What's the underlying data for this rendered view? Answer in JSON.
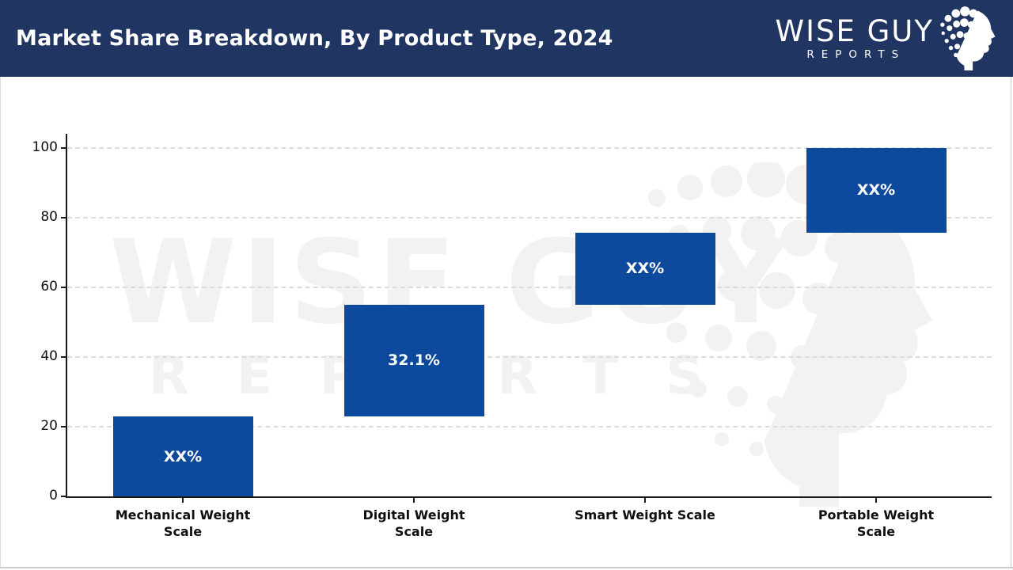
{
  "header": {
    "title": "Market Share Breakdown, By Product Type, 2024",
    "background_color": "#213563",
    "logo": {
      "line1": "WISE GUY",
      "line2": "REPORTS"
    }
  },
  "watermark": {
    "line1": "WISE GUY",
    "line2": "REPORTS"
  },
  "chart_data": {
    "type": "bar",
    "variant": "waterfall",
    "title": "Market Share Breakdown, By Product Type, 2024",
    "xlabel": "",
    "ylabel": "",
    "categories": [
      "Mechanical Weight Scale",
      "Digital Weight Scale",
      "Smart Weight Scale",
      "Portable Weight Scale"
    ],
    "category_label_lines": [
      [
        "Mechanical Weight",
        "Scale"
      ],
      [
        "Digital Weight",
        "Scale"
      ],
      [
        "Smart Weight Scale"
      ],
      [
        "Portable Weight",
        "Scale"
      ]
    ],
    "segments": [
      {
        "category": "Mechanical Weight Scale",
        "start": 0,
        "end": 22.9,
        "label": "XX%"
      },
      {
        "category": "Digital Weight Scale",
        "start": 22.9,
        "end": 55.0,
        "label": "32.1%"
      },
      {
        "category": "Smart Weight Scale",
        "start": 55.0,
        "end": 75.7,
        "label": "XX%"
      },
      {
        "category": "Portable Weight Scale",
        "start": 75.7,
        "end": 100,
        "label": "XX%"
      }
    ],
    "bar_color": "#0d4a9d",
    "bar_label_color": "#ffffff",
    "yticks": [
      0,
      20,
      40,
      60,
      80,
      100
    ],
    "ylim": [
      0,
      104
    ],
    "grid": "horizontal-dashed",
    "legend": null
  }
}
